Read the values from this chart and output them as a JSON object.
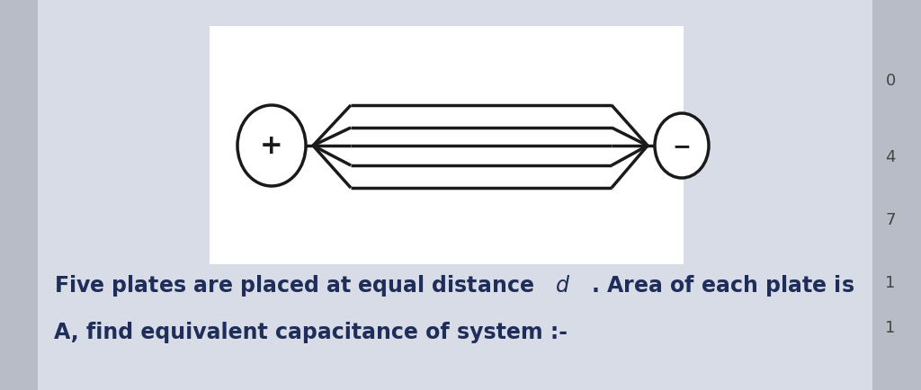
{
  "bg_color": "#d8dce6",
  "box_color": "#ffffff",
  "plate_color": "#1a1a1a",
  "text_color": "#1e2d5a",
  "text_fontsize": 17,
  "right_strip_color": "#b8bcc6",
  "right_numbers": [
    "0",
    "4",
    "7",
    "1",
    "1"
  ],
  "right_numbers_color": "#444444",
  "left_strip_color": "#b8bcc6"
}
